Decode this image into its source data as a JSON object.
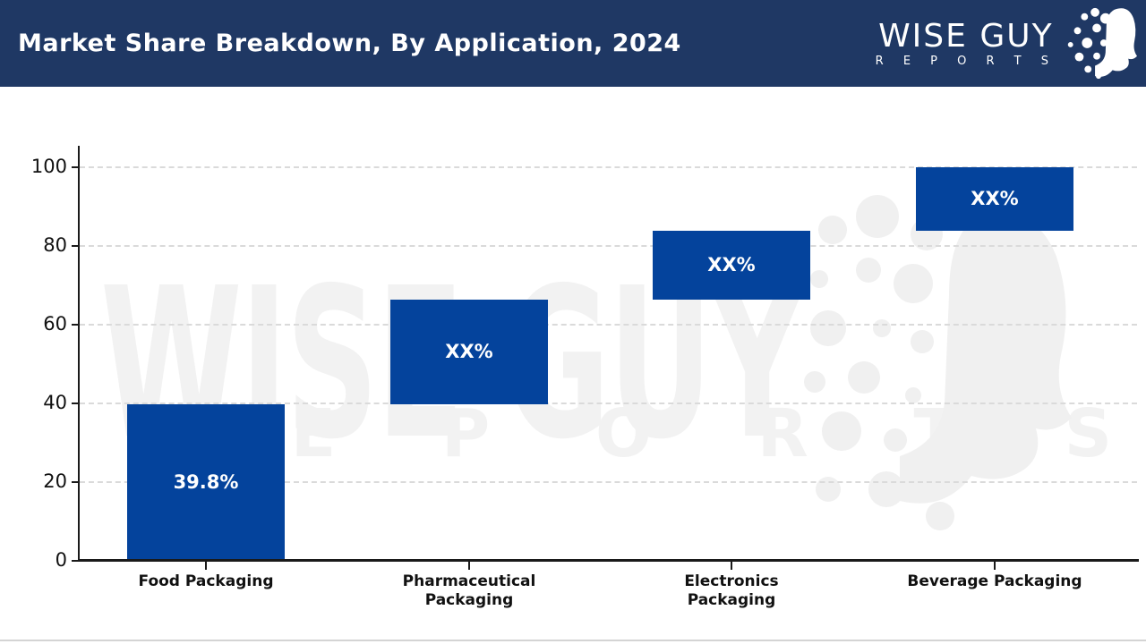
{
  "header": {
    "title": "Market Share Breakdown, By Application, 2024",
    "logo": {
      "line1": "WISE GUY",
      "line2": "R E P O R T S"
    }
  },
  "watermark": {
    "line1": "WISE GUY",
    "line2": "R E P O R T S"
  },
  "chart_data": {
    "type": "bar",
    "subtype": "waterfall",
    "title": "Market Share Breakdown, By Application, 2024",
    "categories": [
      "Food Packaging",
      "Pharmaceutical Packaging",
      "Electronics Packaging",
      "Beverage Packaging"
    ],
    "category_label_lines": [
      [
        "Food Packaging"
      ],
      [
        "Pharmaceutical",
        "Packaging"
      ],
      [
        "Electronics",
        "Packaging"
      ],
      [
        "Beverage Packaging"
      ]
    ],
    "segments": [
      {
        "category": "Food Packaging",
        "start": 0,
        "end": 39.8,
        "label": "39.8%"
      },
      {
        "category": "Pharmaceutical Packaging",
        "start": 39.8,
        "end": 66.4,
        "label": "XX%"
      },
      {
        "category": "Electronics Packaging",
        "start": 66.4,
        "end": 83.9,
        "label": "XX%"
      },
      {
        "category": "Beverage Packaging",
        "start": 83.9,
        "end": 100,
        "label": "XX%"
      }
    ],
    "ylim": [
      0,
      105
    ],
    "yticks": [
      0,
      20,
      40,
      60,
      80,
      100
    ],
    "grid": "dashed-horizontal",
    "legend": "none",
    "bar_color": "#04439c",
    "bar_label_color": "#ffffff",
    "axis_color": "#1a1a1a",
    "header_bg_color": "#1f3864",
    "watermark_color": "#f2f2f2"
  }
}
